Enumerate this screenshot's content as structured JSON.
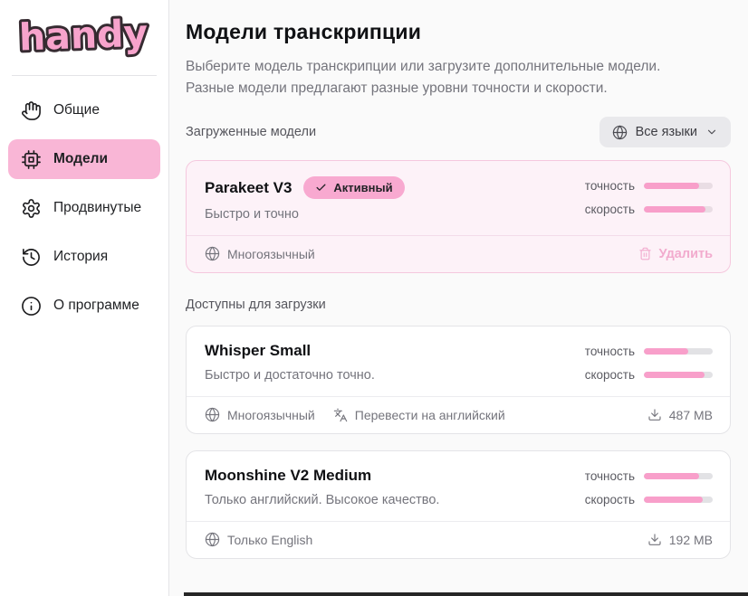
{
  "app": {
    "logo_text": "handy"
  },
  "sidebar": {
    "items": [
      {
        "label": "Общие",
        "icon": "hand-icon",
        "active": false
      },
      {
        "label": "Модели",
        "icon": "chip-icon",
        "active": true
      },
      {
        "label": "Продвинутые",
        "icon": "gear-icon",
        "active": false
      },
      {
        "label": "История",
        "icon": "history-icon",
        "active": false
      },
      {
        "label": "О программе",
        "icon": "info-icon",
        "active": false
      }
    ]
  },
  "header": {
    "title": "Модели транскрипции",
    "description_line1": "Выберите модель транскрипции или загрузите дополнительные модели.",
    "description_line2": "Разные модели предлагают разные уровни точности и скорости."
  },
  "sections": {
    "downloaded_label": "Загруженные модели",
    "available_label": "Доступны для загрузки"
  },
  "language_filter": {
    "label": "Все языки"
  },
  "metrics": {
    "accuracy_label": "точность",
    "speed_label": "скорость"
  },
  "models": [
    {
      "name": "Parakeet V3",
      "badge": "Активный",
      "description": "Быстро и точно",
      "accuracy_percent": 80,
      "speed_percent": 90,
      "language": "Многоязычный",
      "delete_label": "Удалить"
    },
    {
      "name": "Whisper Small",
      "description": "Быстро и достаточно точно.",
      "accuracy_percent": 65,
      "speed_percent": 88,
      "language": "Многоязычный",
      "translate_label": "Перевести на английский",
      "size": "487 MB"
    },
    {
      "name": "Moonshine V2 Medium",
      "description": "Только английский. Высокое качество.",
      "accuracy_percent": 80,
      "speed_percent": 85,
      "language": "Только English",
      "size": "192 MB"
    }
  ],
  "colors": {
    "accent_pink": "#f9b6d6",
    "badge_pink": "#f8a9d0",
    "bar_fill_pink": "#f89fca",
    "active_card_bg": "#fdf2f8",
    "active_card_border": "#f5c8de",
    "content_bg": "#fafafa"
  }
}
